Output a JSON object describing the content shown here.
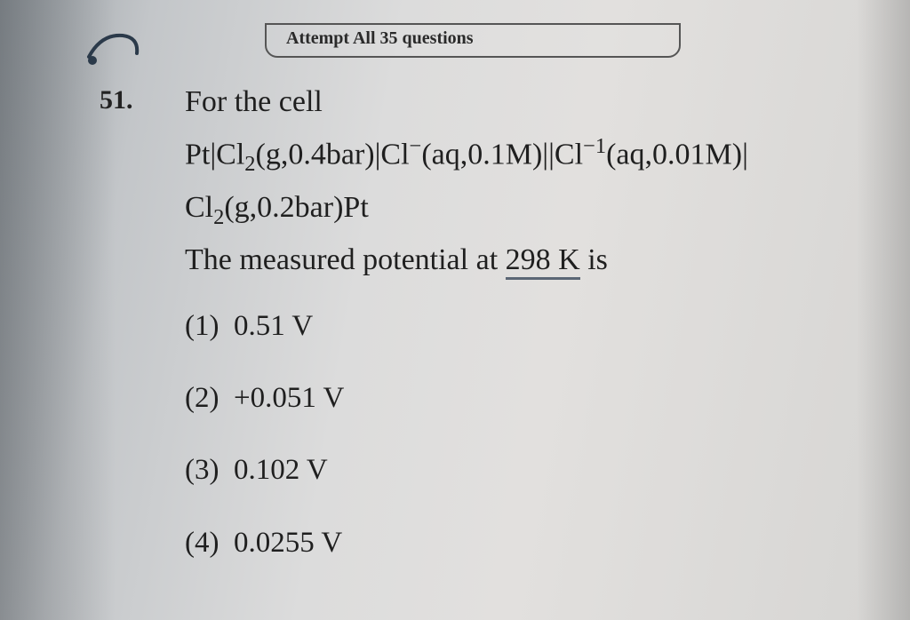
{
  "colors": {
    "text": "#262626",
    "underline": "#5b6675",
    "ink_mark": "#2b3a4a",
    "box_border": "#555555"
  },
  "header": {
    "partial_text": "Attempt All 35 questions"
  },
  "question": {
    "number": "51.",
    "prompt": "For the cell",
    "cell_line1_html": "Pt|Cl<sub>2</sub>(g,0.4bar)|Cl<sup>−</sup>(aq,0.1M)||Cl<sup>−1</sup>(aq,0.01M)|",
    "cell_line2_html": "Cl<sub>2</sub>(g,0.2bar)Pt",
    "measured_prefix": "The measured potential at ",
    "measured_underlined": "298 K",
    "measured_suffix": " is"
  },
  "options": [
    {
      "label": "(1)",
      "text": "0.51 V"
    },
    {
      "label": "(2)",
      "text": "+0.051 V"
    },
    {
      "label": "(3)",
      "text": "0.102 V"
    },
    {
      "label": "(4)",
      "text": "0.0255 V"
    }
  ]
}
